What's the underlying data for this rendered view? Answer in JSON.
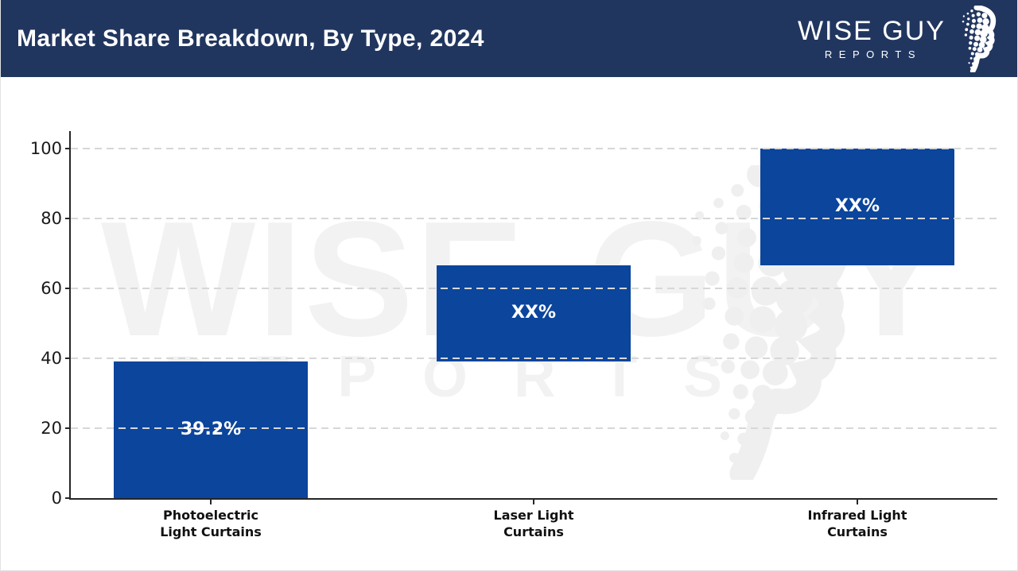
{
  "header": {
    "title": "Market Share Breakdown, By Type, 2024",
    "logo": {
      "wordmark": "WISE GUY",
      "subtext": "REPORTS"
    },
    "background_color": "#21365f"
  },
  "watermark": {
    "wordmark": "WISE GUY",
    "subtext": "REPORTS"
  },
  "chart_data": {
    "type": "bar",
    "subtype": "floating-segmented-bar-waterfall",
    "title": "Market Share Breakdown, By Type, 2024",
    "categories": [
      "Photoelectric Light Curtains",
      "Laser Light Curtains",
      "Infrared Light Curtains"
    ],
    "categories_lines": [
      [
        "Photoelectric",
        "Light Curtains"
      ],
      [
        "Laser Light",
        "Curtains"
      ],
      [
        "Infrared Light",
        "Curtains"
      ]
    ],
    "segments": [
      {
        "category": "Photoelectric Light Curtains",
        "start": 0,
        "end": 39.2,
        "label": "39.2%"
      },
      {
        "category": "Laser Light Curtains",
        "start": 39.2,
        "end": 66.6,
        "label": "XX%"
      },
      {
        "category": "Infrared Light Curtains",
        "start": 66.6,
        "end": 100,
        "label": "XX%"
      }
    ],
    "xlabel": "",
    "ylabel": "",
    "ylim": [
      0,
      100
    ],
    "yticks": [
      0,
      20,
      40,
      60,
      80,
      100
    ],
    "grid": "horizontal-dashed",
    "legend": "none",
    "colors": {
      "bar": "#0b459c",
      "bar_label": "#ffffff",
      "grid": "#d7d7d7",
      "axis": "#262626",
      "tick_label": "#1a1a1a",
      "header_bg": "#21365f",
      "watermark": "#f2f2f2"
    }
  }
}
